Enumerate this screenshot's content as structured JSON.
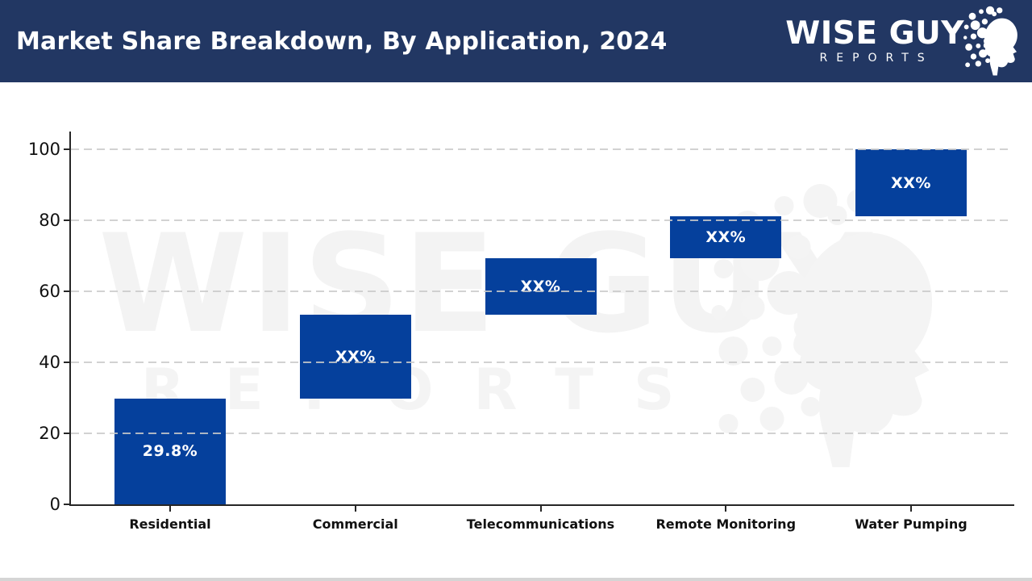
{
  "header": {
    "title": "Market Share Breakdown, By Application, 2024",
    "logo": {
      "line1": "WISE GUY",
      "line2": "REPORTS"
    }
  },
  "watermark": {
    "line1": "WISE GUY",
    "line2": "REPORTS"
  },
  "chart_data": {
    "type": "bar",
    "subtype": "waterfall",
    "title": "Market Share Breakdown, By Application, 2024",
    "categories": [
      "Residential",
      "Commercial",
      "Telecommunications",
      "Remote Monitoring",
      "Water Pumping"
    ],
    "segments": [
      [
        0,
        29.8
      ],
      [
        29.8,
        53.4
      ],
      [
        53.4,
        69.3
      ],
      [
        69.3,
        81.1
      ],
      [
        81.1,
        100
      ]
    ],
    "values": [
      29.8,
      23.6,
      15.9,
      11.8,
      18.9
    ],
    "bar_labels": [
      "29.8%",
      "XX%",
      "XX%",
      "XX%",
      "XX%"
    ],
    "xlabel": "",
    "ylabel": "",
    "yticks": [
      0,
      20,
      40,
      60,
      80,
      100
    ],
    "ylim": [
      0,
      105
    ],
    "grid": "horizontal-dashed",
    "legend": "none",
    "bar_color": "#05409c",
    "label_color": "#ffffff",
    "axis_color": "#262626",
    "grid_color": "#d6d6d6"
  },
  "colors": {
    "header_bg": "#223763",
    "bar_blue": "#05409c",
    "watermark_gray": "#f3f3f3",
    "bottom_border": "#d5d5d5"
  }
}
